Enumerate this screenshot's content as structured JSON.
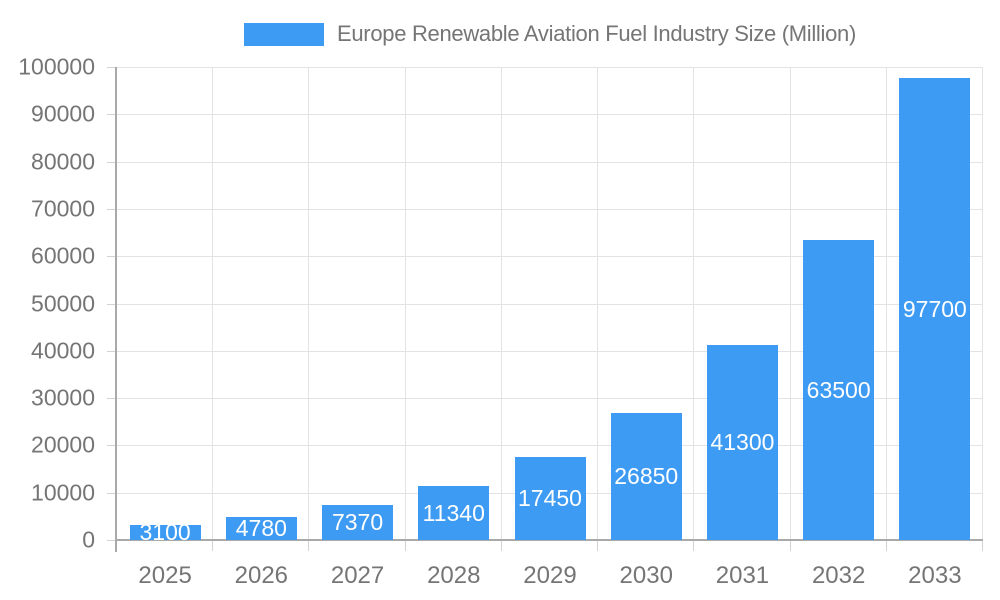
{
  "chart_data": {
    "type": "bar",
    "title": "Europe Renewable Aviation Fuel Industry Size (Million)",
    "categories": [
      "2025",
      "2026",
      "2027",
      "2028",
      "2029",
      "2030",
      "2031",
      "2032",
      "2033"
    ],
    "values": [
      3100,
      4780,
      7370,
      11340,
      17450,
      26850,
      41300,
      63500,
      97700
    ],
    "value_labels": [
      "3100",
      "4780",
      "7370",
      "11340",
      "17450",
      "26850",
      "41300",
      "63500",
      "97700"
    ],
    "ytick_labels": [
      "0",
      "10000",
      "20000",
      "30000",
      "40000",
      "50000",
      "60000",
      "70000",
      "80000",
      "90000",
      "100000"
    ],
    "ylim": [
      0,
      100000
    ],
    "ytick_step": 10000,
    "xlabel": "",
    "ylabel": "",
    "grid": "horizontal-and-vertical",
    "legend_position": "top-center",
    "bar_label_position": "center-inside",
    "colors": {
      "bar": "#3e9bf3",
      "bar_value_text": "#ffffff",
      "axis_text": "#757575",
      "title_text": "#757575",
      "grid_line": "#e3e3e3",
      "axis_line": "#a9a9a9",
      "tick_line": "#d2d2d2"
    }
  }
}
